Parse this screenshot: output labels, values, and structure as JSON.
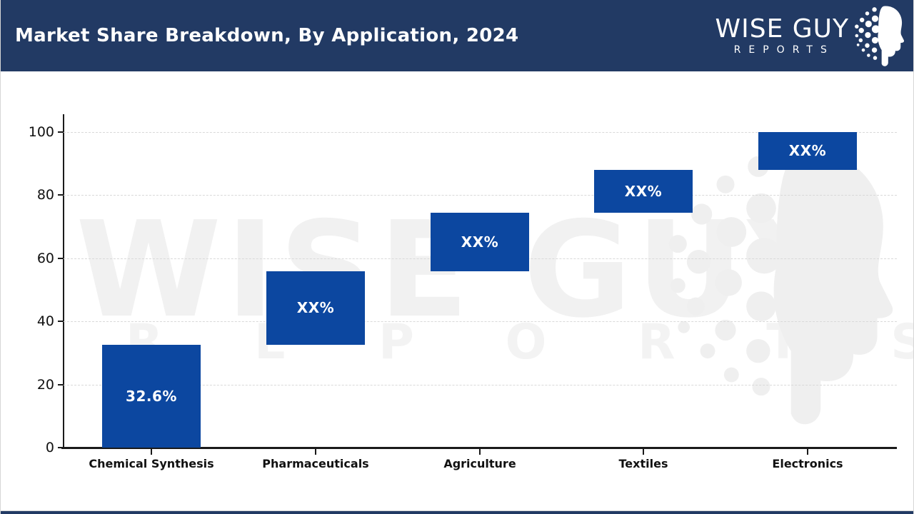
{
  "header": {
    "title": "Market Share Breakdown, By Application, 2024",
    "logo_line1": "WISE GUY",
    "logo_line2": "REPORTS",
    "bg_color": "#223a64"
  },
  "watermark": {
    "line1": "WISE GUY",
    "line2": "REPORTS"
  },
  "chart_data": {
    "type": "bar",
    "subtype": "waterfall",
    "title": "Market Share Breakdown, By Application, 2024",
    "categories": [
      "Chemical Synthesis",
      "Pharmaceuticals",
      "Agriculture",
      "Textiles",
      "Electronics"
    ],
    "segments": [
      {
        "category": "Chemical Synthesis",
        "start": 0,
        "end": 32.6,
        "label": "32.6%"
      },
      {
        "category": "Pharmaceuticals",
        "start": 32.6,
        "end": 55.9,
        "label": "XX%"
      },
      {
        "category": "Agriculture",
        "start": 55.9,
        "end": 74.4,
        "label": "XX%"
      },
      {
        "category": "Textiles",
        "start": 74.4,
        "end": 88.1,
        "label": "XX%"
      },
      {
        "category": "Electronics",
        "start": 88.1,
        "end": 100,
        "label": "XX%"
      }
    ],
    "y_ticks": [
      0,
      20,
      40,
      60,
      80,
      100
    ],
    "ylim": [
      0,
      105.5
    ],
    "xlabel": "",
    "ylabel": "",
    "bar_color": "#0c47a0",
    "grid": "horizontal-dashed",
    "legend": "none"
  }
}
